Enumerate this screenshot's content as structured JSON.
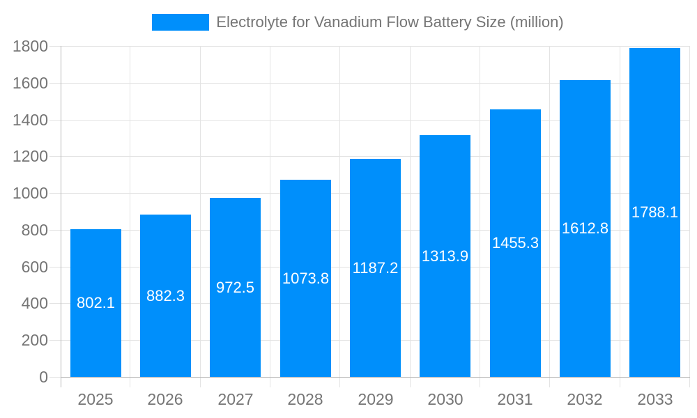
{
  "chart_data": {
    "type": "bar",
    "title": "Electrolyte for Vanadium Flow Battery Size (million)",
    "legend": {
      "position": "top",
      "label": "Electrolyte for Vanadium Flow Battery Size (million)"
    },
    "categories": [
      "2025",
      "2026",
      "2027",
      "2028",
      "2029",
      "2030",
      "2031",
      "2032",
      "2033"
    ],
    "series": [
      {
        "name": "Electrolyte for Vanadium Flow Battery Size (million)",
        "values": [
          802.1,
          882.3,
          972.5,
          1073.8,
          1187.2,
          1313.9,
          1455.3,
          1612.8,
          1788.1
        ]
      }
    ],
    "value_labels": [
      "802.1",
      "882.3",
      "972.5",
      "1073.8",
      "1187.2",
      "1313.9",
      "1455.3",
      "1612.8",
      "1788.1"
    ],
    "xlabel": "",
    "ylabel": "",
    "ylim": [
      0,
      1800
    ],
    "ytick_step": 200,
    "ytick_labels": [
      "0",
      "200",
      "400",
      "600",
      "800",
      "1000",
      "1200",
      "1400",
      "1600",
      "1800"
    ],
    "grid": true,
    "colors": {
      "bar": "#008ffb",
      "grid": "#e3e3e3",
      "axis": "#b6b6b6",
      "label": "#757575",
      "value_label": "#ffffff",
      "background": "#ffffff"
    }
  }
}
